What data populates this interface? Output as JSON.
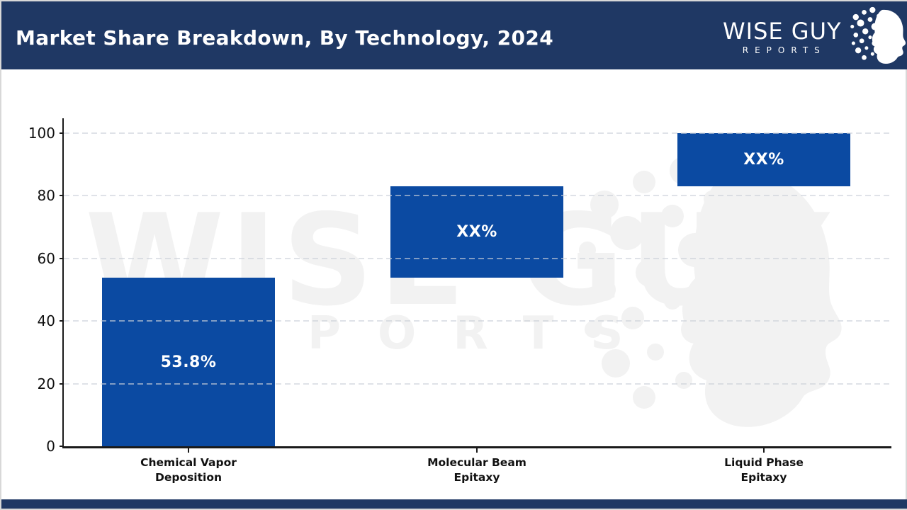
{
  "header": {
    "title": "Market Share Breakdown, By Technology, 2024",
    "logo": {
      "line1": "WISE GUY",
      "line2": "REPORTS"
    }
  },
  "watermark": {
    "line1": "WISE GUY",
    "line2": "REPORTS"
  },
  "chart_data": {
    "type": "bar",
    "subtype": "waterfall (floating stacked segments)",
    "title": "Market Share Breakdown, By Technology, 2024",
    "categories": [
      "Chemical Vapor Deposition",
      "Molecular Beam Epitaxy",
      "Liquid Phase Epitaxy"
    ],
    "category_lines": [
      [
        "Chemical Vapor",
        "Deposition"
      ],
      [
        "Molecular Beam",
        "Epitaxy"
      ],
      [
        "Liquid Phase",
        "Epitaxy"
      ]
    ],
    "bars": [
      {
        "category": "Chemical Vapor Deposition",
        "start": 0,
        "end": 53.8,
        "label": "53.8%"
      },
      {
        "category": "Molecular Beam Epitaxy",
        "start": 53.8,
        "end": 83,
        "label": "XX%"
      },
      {
        "category": "Liquid Phase Epitaxy",
        "start": 83,
        "end": 100,
        "label": "XX%"
      }
    ],
    "yticks": [
      0,
      20,
      40,
      60,
      80,
      100
    ],
    "ylim": [
      0,
      105
    ],
    "xlabel": "",
    "ylabel": "",
    "grid": "horizontal dashed",
    "legend": "none",
    "bar_color": "#0b4aa2",
    "bar_label_color": "#ffffff"
  },
  "colors": {
    "header_bg": "#1f3864",
    "footer_bg": "#1f3864",
    "bar": "#0b4aa2",
    "grid": "#dfe2e8",
    "axis": "#1a1a1a",
    "watermark": "#f2f2f2",
    "title_text": "#ffffff"
  }
}
